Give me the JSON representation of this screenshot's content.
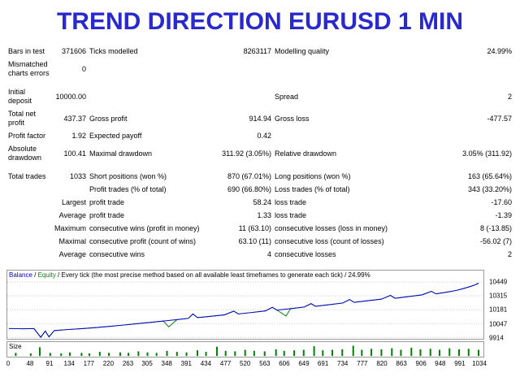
{
  "title": {
    "text": "TREND DIRECTION EURUSD 1 MIN",
    "color": "#2929cc"
  },
  "report": {
    "rows": [
      {
        "cells": [
          "Bars in test",
          "371606",
          "Ticks modelled",
          "8263117",
          "Modelling quality",
          "24.99%"
        ]
      },
      {
        "cells": [
          "Mismatched charts errors",
          "0",
          "",
          "",
          "",
          ""
        ]
      },
      {
        "spacer": true
      },
      {
        "cells": [
          "Initial deposit",
          "10000.00",
          "",
          "",
          "Spread",
          "2"
        ]
      },
      {
        "cells": [
          "Total net profit",
          "437.37",
          "Gross profit",
          "914.94",
          "Gross loss",
          "-477.57"
        ]
      },
      {
        "cells": [
          "Profit factor",
          "1.92",
          "Expected payoff",
          "0.42",
          "",
          ""
        ]
      },
      {
        "cells": [
          "Absolute drawdown",
          "100.41",
          "Maximal drawdown",
          "311.92 (3.05%)",
          "Relative drawdown",
          "3.05% (311.92)"
        ]
      },
      {
        "spacer": true
      },
      {
        "cells": [
          "Total trades",
          "1033",
          "Short positions (won %)",
          "870 (67.01%)",
          "Long positions (won %)",
          "163 (65.64%)"
        ]
      },
      {
        "cells": [
          "",
          "",
          "Profit trades (% of total)",
          "690 (66.80%)",
          "Loss trades (% of total)",
          "343 (33.20%)"
        ]
      },
      {
        "cells": [
          "",
          "Largest",
          "profit trade",
          "58.24",
          "loss trade",
          "-17.60"
        ]
      },
      {
        "cells": [
          "",
          "Average",
          "profit trade",
          "1.33",
          "loss trade",
          "-1.39"
        ]
      },
      {
        "cells": [
          "",
          "Maximum",
          "consecutive wins (profit in money)",
          "11 (63.10)",
          "consecutive losses (loss in money)",
          "8 (-13.85)"
        ]
      },
      {
        "cells": [
          "",
          "Maximal",
          "consecutive profit (count of wins)",
          "63.10 (11)",
          "consecutive loss (count of losses)",
          "-56.02 (7)"
        ]
      },
      {
        "cells": [
          "",
          "Average",
          "consecutive wins",
          "4",
          "consecutive losses",
          "2"
        ]
      }
    ]
  },
  "chart_data": {
    "type": "line",
    "legend": {
      "balance": "Balance",
      "sep": " / ",
      "equity": "Equity",
      "method": "Every tick (the most precise method based on all available least timeframes to generate each tick) / 24.99%"
    },
    "size_label": "Size",
    "xlabel": "",
    "ylabel": "",
    "xlim": [
      0,
      1034
    ],
    "ylim": [
      9900,
      10560
    ],
    "xticks": [
      0,
      48,
      91,
      134,
      177,
      220,
      263,
      305,
      348,
      391,
      434,
      477,
      520,
      563,
      606,
      649,
      691,
      734,
      777,
      820,
      863,
      906,
      948,
      991,
      1034
    ],
    "yticks": [
      10449,
      10315,
      10181,
      10047,
      9914
    ],
    "grid": "horizontal-dotted",
    "legend_position": "top-left-inside",
    "colors": {
      "balance": "#0000cc",
      "equity": "#008000",
      "size_bars": "#008000",
      "grid": "#c8c8c8"
    },
    "series": [
      {
        "name": "Balance",
        "x": [
          0,
          30,
          55,
          70,
          80,
          88,
          100,
          130,
          160,
          190,
          220,
          250,
          280,
          310,
          340,
          370,
          395,
          405,
          415,
          445,
          475,
          495,
          505,
          535,
          565,
          580,
          590,
          620,
          650,
          665,
          675,
          705,
          735,
          750,
          760,
          790,
          820,
          840,
          850,
          880,
          910,
          930,
          940,
          965,
          985,
          1000,
          1015,
          1025,
          1034
        ],
        "y": [
          10000,
          9997,
          9999,
          9916,
          9975,
          9920,
          9980,
          9990,
          9998,
          10008,
          10020,
          10032,
          10045,
          10058,
          10072,
          10086,
          10098,
          10140,
          10105,
          10118,
          10132,
          10168,
          10140,
          10155,
          10170,
          10205,
          10178,
          10192,
          10207,
          10240,
          10215,
          10230,
          10246,
          10280,
          10252,
          10268,
          10284,
          10320,
          10292,
          10308,
          10325,
          10360,
          10335,
          10352,
          10368,
          10385,
          10405,
          10420,
          10437
        ]
      },
      {
        "name": "Equity",
        "x": [
          0,
          30,
          55,
          70,
          80,
          88,
          100,
          130,
          160,
          190,
          220,
          250,
          280,
          310,
          340,
          352,
          370,
          395,
          405,
          415,
          445,
          475,
          495,
          505,
          535,
          565,
          580,
          590,
          610,
          620,
          650,
          665,
          675,
          705,
          735,
          750,
          760,
          790,
          820,
          840,
          850,
          880,
          910,
          930,
          940,
          965,
          985,
          1000,
          1015,
          1025,
          1034
        ],
        "y": [
          10000,
          9997,
          9999,
          9914,
          9975,
          9918,
          9980,
          9990,
          9998,
          10008,
          10020,
          10032,
          10045,
          10058,
          10072,
          10015,
          10086,
          10098,
          10140,
          10105,
          10118,
          10132,
          10168,
          10140,
          10155,
          10170,
          10205,
          10178,
          10120,
          10192,
          10207,
          10240,
          10215,
          10230,
          10246,
          10280,
          10252,
          10268,
          10284,
          10320,
          10292,
          10308,
          10325,
          10360,
          10335,
          10352,
          10368,
          10385,
          10405,
          10420,
          10437
        ]
      }
    ],
    "size_bars": {
      "x": [
        15,
        48,
        68,
        91,
        115,
        134,
        160,
        177,
        200,
        220,
        245,
        263,
        285,
        305,
        325,
        348,
        370,
        391,
        415,
        434,
        458,
        477,
        498,
        520,
        540,
        563,
        588,
        606,
        628,
        649,
        672,
        691,
        712,
        734,
        758,
        777,
        798,
        820,
        843,
        863,
        886,
        906,
        928,
        948,
        970,
        991,
        1012,
        1034
      ],
      "h": [
        0.3,
        0.25,
        0.85,
        0.3,
        0.25,
        0.35,
        0.3,
        0.25,
        0.4,
        0.3,
        0.35,
        0.3,
        0.45,
        0.35,
        0.3,
        0.5,
        0.4,
        0.35,
        0.55,
        0.4,
        0.9,
        0.5,
        0.45,
        0.6,
        0.5,
        0.45,
        0.65,
        0.5,
        0.55,
        0.6,
        0.95,
        0.55,
        0.6,
        0.65,
        1.0,
        0.6,
        0.7,
        0.65,
        0.75,
        0.6,
        0.8,
        0.65,
        0.7,
        0.6,
        0.75,
        0.65,
        0.7,
        0.6
      ]
    }
  }
}
